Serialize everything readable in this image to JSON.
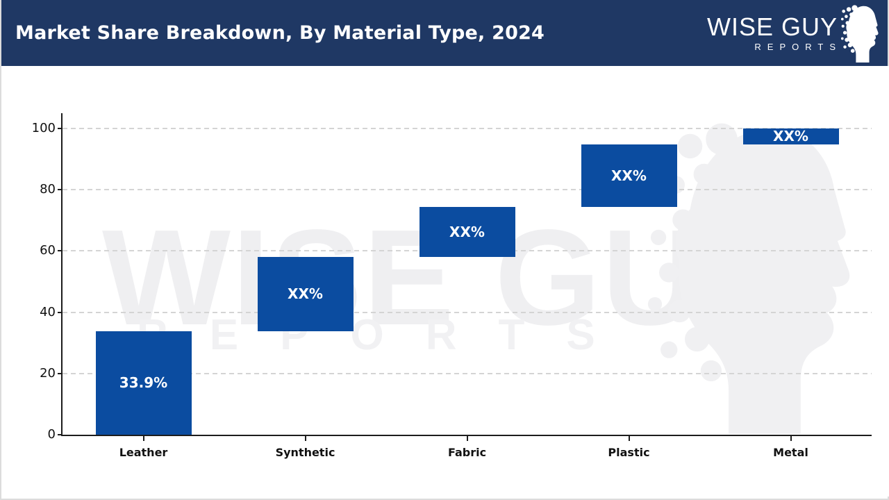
{
  "page": {
    "background": "#ffffff",
    "frame_color": "#dcdcdc"
  },
  "header": {
    "bg_color": "#1f3864",
    "title": "Market Share Breakdown, By Material Type, 2024",
    "logo": {
      "wordmark": "WISE GUY",
      "subtext": "REPORTS"
    }
  },
  "watermark": {
    "line1": "WISE GUY",
    "line2": "REPORTS"
  },
  "chart_data": {
    "type": "bar",
    "variant": "waterfall",
    "title": "Market Share Breakdown, By Material Type, 2024",
    "categories": [
      "Leather",
      "Synthetic",
      "Fabric",
      "Plastic",
      "Metal"
    ],
    "segments": [
      {
        "category": "Leather",
        "start": 0,
        "end": 33.9,
        "label": "33.9%"
      },
      {
        "category": "Synthetic",
        "start": 33.9,
        "end": 58.1,
        "label": "XX%"
      },
      {
        "category": "Fabric",
        "start": 58.1,
        "end": 74.3,
        "label": "XX%"
      },
      {
        "category": "Plastic",
        "start": 74.3,
        "end": 94.9,
        "label": "XX%"
      },
      {
        "category": "Metal",
        "start": 94.9,
        "end": 100,
        "label": "XX%"
      }
    ],
    "xlabel": "",
    "ylabel": "",
    "yticks": [
      0,
      20,
      40,
      60,
      80,
      100
    ],
    "ylim": [
      0,
      105
    ],
    "grid": {
      "axis": "y",
      "style": "dashed",
      "color": "#d4d4d4"
    },
    "legend": "none",
    "bar_color": "#0b4ca0",
    "bar_label_color": "#ffffff",
    "axis_color": "#1c1c1c",
    "tick_label_color": "#111111"
  }
}
